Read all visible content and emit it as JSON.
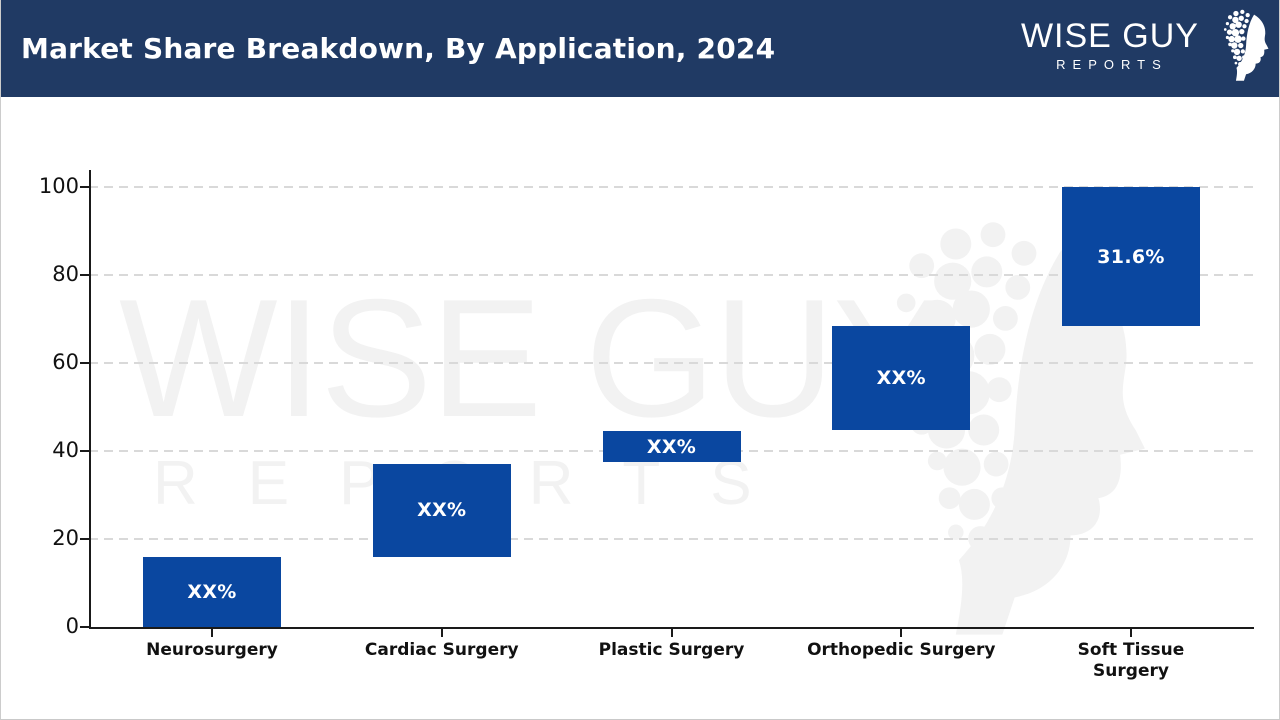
{
  "header": {
    "title": "Market Share Breakdown, By Application, 2024",
    "bg_color": "#203a64",
    "logo": {
      "line1": "WISE GUY",
      "line2": "REPORTS"
    }
  },
  "watermark": {
    "line1": "WISE GUY",
    "line2": "REPORTS"
  },
  "chart_data": {
    "type": "bar",
    "subtype": "waterfall",
    "title": "Market Share Breakdown, By Application, 2024",
    "xlabel": "",
    "ylabel": "",
    "categories": [
      "Neurosurgery",
      "Cardiac Surgery",
      "Plastic Surgery",
      "Orthopedic Surgery",
      "Soft Tissue\nSurgery"
    ],
    "series": [
      {
        "name": "Market share (%)",
        "segments": [
          [
            0,
            16
          ],
          [
            16,
            37
          ],
          [
            37.5,
            44.5
          ],
          [
            44.8,
            68.4
          ],
          [
            68.4,
            100
          ]
        ]
      }
    ],
    "bar_labels": [
      "XX%",
      "XX%",
      "XX%",
      "XX%",
      "31.6%"
    ],
    "bar_color": "#0a47a0",
    "bar_label_color": "#ffffff",
    "yticks": [
      0,
      20,
      40,
      60,
      80,
      100
    ],
    "ylim": [
      0,
      104
    ],
    "grid": "horizontal-dashed",
    "gridline_color": "#d9d9d9",
    "legend": "none"
  }
}
